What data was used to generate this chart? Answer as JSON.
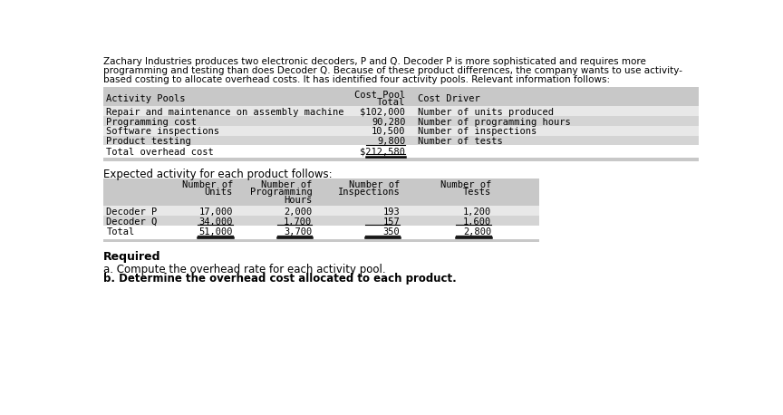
{
  "intro_lines": [
    "Zachary Industries produces two electronic decoders, P and Q. Decoder P is more sophisticated and requires more",
    "programming and testing than does Decoder Q. Because of these product differences, the company wants to use activity-",
    "based costing to allocate overhead costs. It has identified four activity pools. Relevant information follows:"
  ],
  "table1_rows": [
    [
      "Repair and maintenance on assembly machine",
      "$102,000",
      "Number of units produced"
    ],
    [
      "Programming cost",
      "90,280",
      "Number of programming hours"
    ],
    [
      "Software inspections",
      "10,500",
      "Number of inspections"
    ],
    [
      "Product testing",
      "9,800",
      "Number of tests"
    ]
  ],
  "table1_total_label": "Total overhead cost",
  "table1_total_value": "$212,580",
  "expected_text": "Expected activity for each product follows:",
  "table2_header_line1": [
    "",
    "Number of",
    "",
    "Number of",
    "Number of"
  ],
  "table2_header_line2": [
    "",
    "Units",
    "Programming",
    "Inspections",
    "Tests"
  ],
  "table2_header_line3": [
    "",
    "",
    "Hours",
    "",
    ""
  ],
  "table2_rows": [
    [
      "Decoder P",
      "17,000",
      "2,000",
      "193",
      "1,200"
    ],
    [
      "Decoder Q",
      "34,000",
      "1,700",
      "157",
      "1,600"
    ],
    [
      "Total",
      "51,000",
      "3,700",
      "350",
      "2,800"
    ]
  ],
  "required_text": "Required",
  "req_a": "a. Compute the overhead rate for each activity pool.",
  "req_b": "b. Determine the overhead cost allocated to each product.",
  "bg_color": "#ffffff",
  "table_header_bg": "#c8c8c8",
  "row_bg_light": "#e8e8e8",
  "row_bg_dark": "#d4d4d4",
  "table_footer_bg": "#c8c8c8",
  "text_color": "#000000",
  "mono_font": "monospace",
  "sans_font": "DejaVu Sans"
}
